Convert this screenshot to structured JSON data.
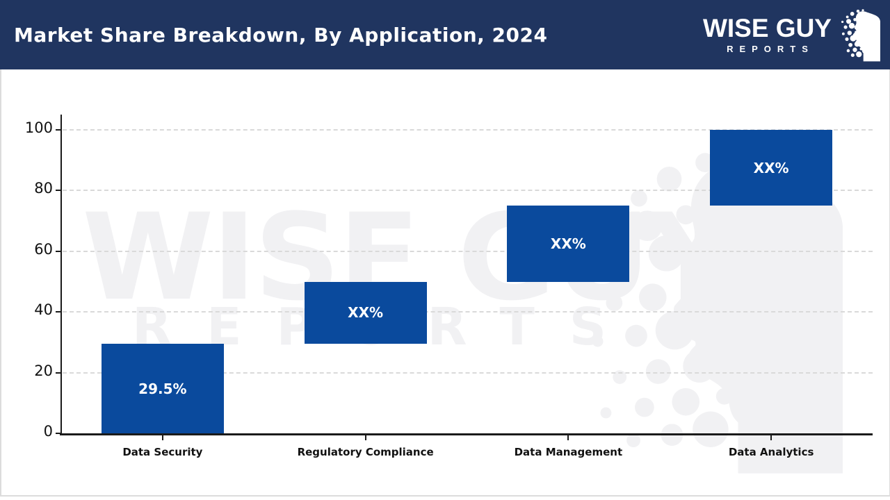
{
  "header": {
    "title": "Market Share Breakdown, By Application, 2024"
  },
  "logo": {
    "brand_line1": "WISE GUY",
    "brand_line2": "REPORTS"
  },
  "watermark": {
    "line1": "WISE GUY",
    "line2": "REPORTS"
  },
  "colors": {
    "header_bg": "#203560",
    "bar": "#0a4a9d",
    "bar_label": "#ffffff",
    "axis": "#1a1a1a",
    "grid": "#d9d9d9",
    "watermark": "#f1f1f3",
    "title_text": "#ffffff",
    "tick_text": "#111111"
  },
  "chart_data": {
    "type": "bar",
    "subtype": "waterfall",
    "title": "Market Share Breakdown, By Application, 2024",
    "categories": [
      "Data Security",
      "Regulatory Compliance",
      "Data Management",
      "Data Analytics"
    ],
    "segments": [
      {
        "category": "Data Security",
        "start": 0,
        "end": 29.5,
        "label": "29.5%"
      },
      {
        "category": "Regulatory Compliance",
        "start": 29.5,
        "end": 50,
        "label": "XX%"
      },
      {
        "category": "Data Management",
        "start": 50,
        "end": 75,
        "label": "XX%"
      },
      {
        "category": "Data Analytics",
        "start": 75,
        "end": 100,
        "label": "XX%"
      }
    ],
    "values_displayed": [
      "29.5%",
      "XX%",
      "XX%",
      "XX%"
    ],
    "xlabel": "",
    "ylabel": "",
    "ylim": [
      0,
      105
    ],
    "yticks": [
      0,
      20,
      40,
      60,
      80,
      100
    ],
    "grid": "horizontal-dashed",
    "legend": "none"
  }
}
